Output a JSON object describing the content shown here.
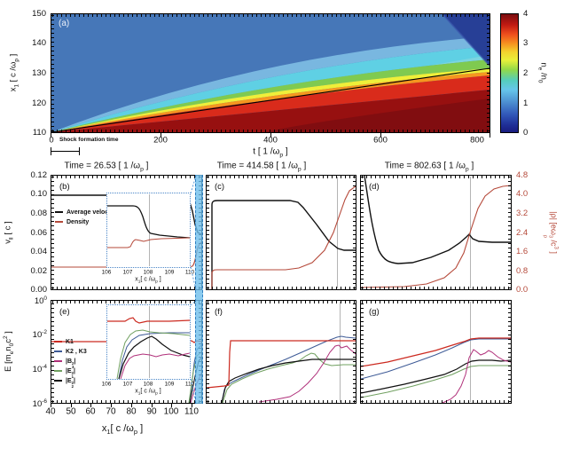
{
  "colors": {
    "accent_red": "#cc2a20",
    "density_red": "#b5493a",
    "navy": "#3d5a96",
    "green": "#70a060",
    "magenta": "#b0307a",
    "black": "#111111",
    "map_base_blue": "#4677b8",
    "map_dark_red": "#971010",
    "band_blue": "rgba(110,190,235,0.8)"
  },
  "labels": {
    "a": "(a)",
    "b": "(b)",
    "c": "(c)",
    "d": "(d)",
    "e": "(e)",
    "f": "(f)",
    "g": "(g)"
  },
  "panel_a": {
    "yticks": [
      "150",
      "140",
      "130",
      "120",
      "110"
    ],
    "xticks": [
      "0",
      "200",
      "400",
      "600",
      "800"
    ],
    "ylabel": [
      {
        "t": "x"
      },
      {
        "t": "1",
        "s": "sub"
      },
      {
        "t": " [ c /ω"
      },
      {
        "t": "p",
        "s": "sub"
      },
      {
        "t": " ]"
      }
    ],
    "xlabel": [
      {
        "t": "t [ 1 /ω"
      },
      {
        "t": "p",
        "s": "sub"
      },
      {
        "t": " ]"
      }
    ],
    "shock_text": "Shock formation time",
    "colorbar": {
      "ticks": [
        "4",
        "3",
        "2",
        "1",
        "0"
      ],
      "label": [
        {
          "t": "n"
        },
        {
          "t": "e",
          "s": "sub"
        },
        {
          "t": " /n"
        },
        {
          "t": "0",
          "s": "sub"
        }
      ]
    }
  },
  "row2": {
    "titles": [
      [
        {
          "t": "Time =  "
        },
        {
          "t": "26.53"
        },
        {
          "t": "  [ 1 /ω"
        },
        {
          "t": "p",
          "s": "sub"
        },
        {
          "t": " ]"
        }
      ],
      [
        {
          "t": "Time =  "
        },
        {
          "t": "414.58"
        },
        {
          "t": " [ 1 /ω"
        },
        {
          "t": "p",
          "s": "sub"
        },
        {
          "t": " ]"
        }
      ],
      [
        {
          "t": "Time =  "
        },
        {
          "t": "802.63"
        },
        {
          "t": " [ 1 /ω"
        },
        {
          "t": "p",
          "s": "sub"
        },
        {
          "t": " ]"
        }
      ]
    ],
    "yticks_left": [
      "0.12",
      "0.10",
      "0.08",
      "0.06",
      "0.04",
      "0.02",
      "0.00"
    ],
    "yticks_right": [
      "4.8",
      "4.0",
      "3.2",
      "2.4",
      "1.6",
      "0.8",
      "0.0"
    ],
    "ylabel": [
      {
        "t": "v"
      },
      {
        "t": "‖",
        "s": "sub"
      },
      {
        "t": " [ c ]"
      }
    ],
    "ylabel_right": [
      {
        "t": "|ρ| [eω"
      },
      {
        "s": "stack",
        "sup": "3",
        "sub": "p"
      },
      {
        "t": " /c"
      },
      {
        "t": "3",
        "s": "sup"
      },
      {
        "t": " ]"
      }
    ],
    "legend": {
      "items": [
        {
          "label": "Average velocity"
        },
        {
          "label": "Density"
        }
      ]
    }
  },
  "row3": {
    "yticks": [
      [
        {
          "t": "10"
        },
        {
          "t": "0",
          "s": "sup"
        }
      ],
      [
        {
          "t": "10"
        },
        {
          "t": "-2",
          "s": "sup"
        }
      ],
      [
        {
          "t": "10"
        },
        {
          "t": "-4",
          "s": "sup"
        }
      ],
      [
        {
          "t": "10"
        },
        {
          "t": "-6",
          "s": "sup"
        }
      ]
    ],
    "ylabel": [
      {
        "t": "E [m"
      },
      {
        "t": "e",
        "s": "sub"
      },
      {
        "t": "n"
      },
      {
        "t": "0",
        "s": "sub"
      },
      {
        "t": "c"
      },
      {
        "t": "2",
        "s": "sup"
      },
      {
        "t": " ]"
      }
    ],
    "xticks": [
      "40",
      "50",
      "60",
      "70",
      "80",
      "90",
      "100",
      "110"
    ],
    "xlabel": [
      {
        "t": "x"
      },
      {
        "t": "1",
        "s": "sub"
      },
      {
        "t": "[ c /ω"
      },
      {
        "t": "p",
        "s": "sub"
      },
      {
        "t": " ]"
      }
    ],
    "legend": {
      "items": [
        {
          "label": [
            {
              "t": "K1"
            }
          ]
        },
        {
          "label": [
            {
              "t": "K2 , K3"
            }
          ]
        },
        {
          "label": [
            {
              "t": "|B"
            },
            {
              "s": "stack",
              "sup": "2",
              "sub": "3"
            },
            {
              "t": "|"
            }
          ]
        },
        {
          "label": [
            {
              "t": "|E"
            },
            {
              "s": "stack",
              "sup": "2",
              "sub": "1"
            },
            {
              "t": "|"
            }
          ]
        },
        {
          "label": [
            {
              "t": "|E"
            },
            {
              "s": "stack",
              "sup": "2",
              "sub": "2"
            },
            {
              "t": "|"
            }
          ]
        }
      ]
    }
  },
  "insets": {
    "xticks": [
      "106",
      "107",
      "108",
      "109",
      "110"
    ],
    "xlabel": [
      {
        "t": "x"
      },
      {
        "t": "1",
        "s": "sub"
      },
      {
        "t": "[ c /ω"
      },
      {
        "t": "p",
        "s": "sub"
      },
      {
        "t": " ]"
      }
    ]
  },
  "chart_data": [
    {
      "panel": "a",
      "type": "heatmap",
      "xlabel": "t [1/wp]",
      "xlim": [
        0,
        800
      ],
      "ylabel": "x1 [c/wp]",
      "ylim": [
        110,
        150
      ],
      "colorbar": {
        "label": "ne/n0",
        "range": [
          0,
          4
        ]
      },
      "features": {
        "upstream_density": 1.0,
        "downstream_density": 4.0,
        "shock_front_line": {
          "x": [
            0,
            800
          ],
          "y": [
            110,
            131.5
          ]
        },
        "rarefaction_wedge_top_right": {
          "from_x": 620,
          "note": "dark-blue low-density wedge above cyan band near t=600-800"
        },
        "annotation": "Shock formation time bracket at t≈0-50"
      }
    },
    {
      "panel": "b",
      "type": "line",
      "title": "Time = 26.53 [1/wp]",
      "xlim": [
        40,
        115
      ],
      "left_axis": {
        "label": "v|| [c]",
        "lim": [
          0,
          0.12
        ]
      },
      "right_axis": {
        "label": "|rho| [e wp^3/c^3]",
        "lim": [
          0,
          4.8
        ]
      },
      "series": [
        {
          "name": "Average velocity",
          "axis": "left",
          "color": "#111111",
          "x": [
            40,
            100,
            107,
            108,
            109,
            110,
            112,
            115
          ],
          "y": [
            0.1,
            0.1,
            0.1,
            0.094,
            0.075,
            0.065,
            0.062,
            0.06
          ]
        },
        {
          "name": "Density",
          "axis": "right",
          "color": "#b5493a",
          "x": [
            40,
            100,
            108,
            109,
            110,
            112,
            115
          ],
          "y": [
            0.95,
            0.95,
            0.95,
            1.0,
            1.4,
            2.0,
            2.4
          ]
        }
      ],
      "inset": {
        "xlim": [
          106,
          110
        ],
        "gridline_x": 108,
        "note": "zoom of shock front region"
      }
    },
    {
      "panel": "c",
      "type": "line",
      "title": "Time = 414.58 [1/wp]",
      "x_axis": "unlabeled, normalized 0-1",
      "gridline_x": 0.87,
      "series": [
        {
          "name": "Average velocity",
          "axis": "left",
          "x": [
            0.03,
            0.05,
            0.55,
            0.65,
            0.8,
            0.9,
            1.0
          ],
          "y": [
            0.0,
            0.094,
            0.094,
            0.085,
            0.055,
            0.046,
            0.046
          ]
        },
        {
          "name": "Density",
          "axis": "right",
          "x": [
            0.03,
            0.05,
            0.55,
            0.7,
            0.8,
            0.9,
            0.96,
            1.0
          ],
          "y": [
            0.0,
            0.85,
            0.9,
            1.3,
            2.4,
            3.8,
            4.25,
            4.35
          ]
        }
      ]
    },
    {
      "panel": "d",
      "type": "line",
      "title": "Time = 802.63 [1/wp]",
      "x_axis": "unlabeled, normalized 0-1",
      "gridline_x": 0.725,
      "series": [
        {
          "name": "Average velocity",
          "axis": "left",
          "x": [
            0.02,
            0.1,
            0.2,
            0.35,
            0.55,
            0.68,
            0.725,
            0.78,
            1.0
          ],
          "y": [
            0.12,
            0.055,
            0.031,
            0.028,
            0.036,
            0.048,
            0.057,
            0.051,
            0.05
          ]
        },
        {
          "name": "Density",
          "axis": "right",
          "x": [
            0.0,
            0.35,
            0.55,
            0.65,
            0.72,
            0.8,
            0.88,
            1.0
          ],
          "y": [
            0.06,
            0.1,
            0.4,
            1.1,
            2.4,
            3.6,
            4.1,
            4.35
          ]
        }
      ]
    },
    {
      "panel": "e",
      "type": "line",
      "yscale": "log",
      "xlabel": "x1 [c/wp]",
      "xlim": [
        40,
        115
      ],
      "ylabel": "E [me n0 c^2]",
      "ylim": [
        1e-06,
        1
      ],
      "series": [
        {
          "name": "K1",
          "color": "#cc2a20",
          "x": [
            40,
            105,
            110,
            115
          ],
          "y": [
            0.004,
            0.004,
            0.0035,
            0.004
          ]
        },
        {
          "name": "K2 , K3",
          "color": "#3d5a96",
          "x": [
            107,
            108.5,
            110
          ],
          "y": [
            1e-06,
            0.0002,
            0.004
          ]
        },
        {
          "name": "|E1|^2",
          "color": "#70a060",
          "x": [
            107,
            108,
            110
          ],
          "y": [
            1e-06,
            0.0003,
            0.001
          ]
        },
        {
          "name": "|E2|^2",
          "color": "#111111",
          "x": [
            107,
            108.5,
            110
          ],
          "y": [
            1e-06,
            0.0001,
            0.0006
          ]
        },
        {
          "name": "|B3|^2",
          "color": "#b0307a",
          "x": [
            107,
            108,
            110
          ],
          "y": [
            1e-06,
            3e-05,
            0.0002
          ]
        }
      ],
      "inset": {
        "xlim": [
          106,
          110
        ],
        "gridline_x": 108
      }
    },
    {
      "panel": "f",
      "type": "line",
      "yscale": "log",
      "x_axis": "unlabeled, normalized 0-1",
      "gridline_x": 0.89,
      "series": [
        {
          "name": "K1",
          "x": [
            0,
            0.14,
            0.155,
            0.16,
            1.0
          ],
          "y": [
            8e-06,
            1.2e-05,
            1.2e-05,
            0.004,
            0.004
          ]
        },
        {
          "name": "K2 , K3",
          "x": [
            0.1,
            0.14,
            0.3,
            0.6,
            0.85,
            0.9,
            1.0
          ],
          "y": [
            1e-06,
            1e-05,
            4e-05,
            0.0004,
            0.003,
            0.0045,
            0.0035
          ]
        },
        {
          "name": "|E2|^2",
          "x": [
            0.1,
            0.15,
            0.4,
            0.7,
            1.0
          ],
          "y": [
            1e-06,
            1.5e-05,
            8e-05,
            0.00025,
            0.0003
          ]
        },
        {
          "name": "|E1|^2",
          "x": [
            0.1,
            0.16,
            0.45,
            0.66,
            0.72,
            0.78,
            1.0
          ],
          "y": [
            1e-06,
            1e-05,
            6e-05,
            0.00022,
            0.0007,
            0.00015,
            0.00016
          ]
        },
        {
          "name": "|B3|^2",
          "x": [
            0.35,
            0.6,
            0.78,
            0.87,
            0.9,
            0.94,
            1.0
          ],
          "y": [
            1.1e-06,
            3e-06,
            5e-05,
            0.0008,
            0.0006,
            0.0007,
            0.00035
          ]
        }
      ]
    },
    {
      "panel": "g",
      "type": "line",
      "yscale": "log",
      "x_axis": "unlabeled, normalized 0-1",
      "gridline_x": 0.725,
      "series": [
        {
          "name": "K1",
          "x": [
            0,
            0.25,
            0.5,
            0.7,
            0.79,
            1.0
          ],
          "y": [
            0.00013,
            0.0003,
            0.0008,
            0.0025,
            0.004,
            0.004
          ]
        },
        {
          "name": "K2 , K3",
          "x": [
            0,
            0.25,
            0.5,
            0.7,
            0.79,
            1.0
          ],
          "y": [
            2.5e-05,
            8e-05,
            0.0003,
            0.0015,
            0.0038,
            0.0038
          ]
        },
        {
          "name": "|E2|^2",
          "x": [
            0,
            0.3,
            0.6,
            0.74,
            0.8,
            1.0
          ],
          "y": [
            3.5e-06,
            8e-06,
            4e-05,
            0.0002,
            0.00026,
            0.00026
          ]
        },
        {
          "name": "|E1|^2",
          "x": [
            0,
            0.3,
            0.6,
            0.74,
            0.8,
            1.0
          ],
          "y": [
            1.9e-06,
            5e-06,
            2e-05,
            0.0001,
            0.00014,
            0.00014
          ]
        },
        {
          "name": "|B3|^2",
          "x": [
            0.55,
            0.65,
            0.72,
            0.755,
            0.8,
            0.86,
            0.95,
            1.0
          ],
          "y": [
            1e-06,
            4e-06,
            0.0001,
            0.0011,
            0.0005,
            0.0009,
            0.0002,
            0.00016
          ]
        }
      ]
    }
  ]
}
